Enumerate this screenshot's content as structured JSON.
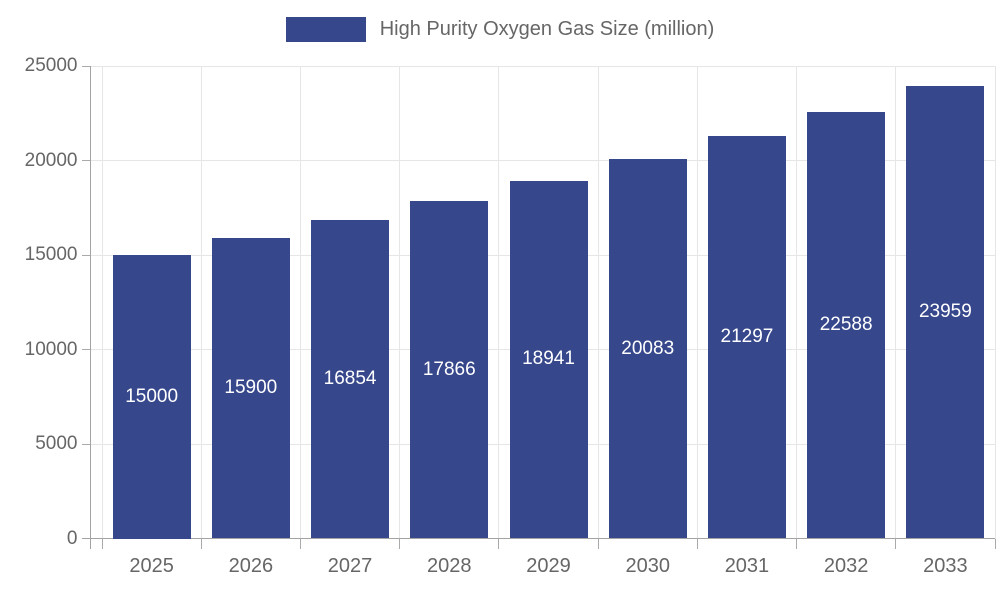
{
  "chart_data": {
    "type": "bar",
    "title": "High Purity Oxygen Gas Size (million)",
    "legend": {
      "position": "top",
      "entries": [
        "High Purity Oxygen Gas Size (million)"
      ]
    },
    "categories": [
      "2025",
      "2026",
      "2027",
      "2028",
      "2029",
      "2030",
      "2031",
      "2032",
      "2033"
    ],
    "series": [
      {
        "name": "High Purity Oxygen Gas Size (million)",
        "values": [
          15000,
          15900,
          16854,
          17866,
          18941,
          20083,
          21297,
          22588,
          23959
        ]
      }
    ],
    "value_labels_shown": true,
    "xlabel": "",
    "ylabel": "",
    "ylim": [
      0,
      25000
    ],
    "yticks": [
      0,
      5000,
      10000,
      15000,
      20000,
      25000
    ],
    "grid": true,
    "colors": {
      "bar": "#36478B",
      "value_label_text": "#FFFFFF",
      "axis_label_text": "#666666",
      "legend_text": "#666666",
      "gridline": "#E6E6E6",
      "axis_line": "#A3A3A3",
      "tick_mark": "#AAAAAA",
      "background": "#FFFFFF"
    }
  }
}
